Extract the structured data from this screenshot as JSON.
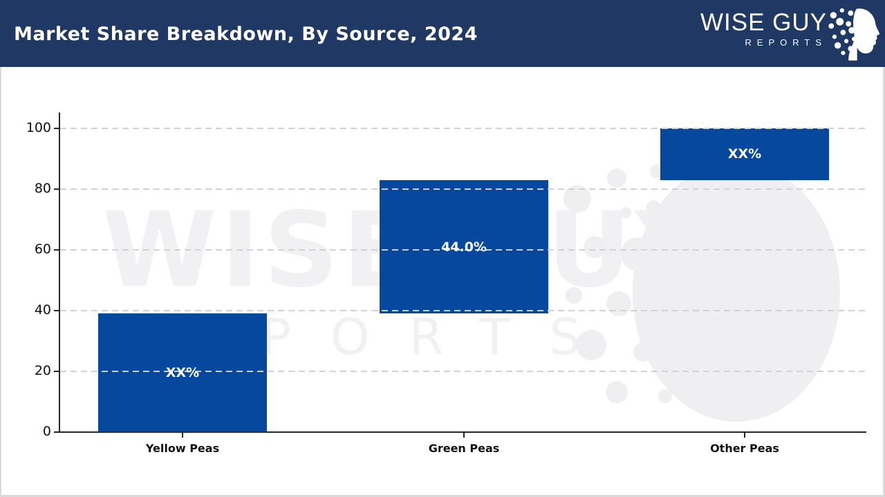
{
  "header": {
    "title": "Market Share Breakdown, By Source, 2024",
    "logo": {
      "line1": "WISE GUY",
      "line2": "REPORTS"
    }
  },
  "watermark": {
    "line1": "WISE GUY",
    "line2": "REPORTS"
  },
  "chart_data": {
    "type": "bar",
    "subtype": "waterfall",
    "title": "Market Share Breakdown, By Source, 2024",
    "categories": [
      "Yellow Peas",
      "Green Peas",
      "Other Peas"
    ],
    "series": [
      {
        "name": "Market Share",
        "segments": [
          {
            "category": "Yellow Peas",
            "start": 0,
            "end": 39,
            "label": "XX%"
          },
          {
            "category": "Green Peas",
            "start": 39,
            "end": 83,
            "label": "44.0%"
          },
          {
            "category": "Other Peas",
            "start": 83,
            "end": 100,
            "label": "XX%"
          }
        ]
      }
    ],
    "xlabel": "",
    "ylabel": "",
    "ylim": [
      0,
      105
    ],
    "yticks": [
      0,
      20,
      40,
      60,
      80,
      100
    ],
    "grid": "horizontal-dashed",
    "legend": "none",
    "bar_color": "#05489D",
    "bar_label_color": "#FFFFFF"
  },
  "colors": {
    "header_bg": "#1F3864",
    "bar": "#05489D",
    "grid": "#D2D2D2",
    "axis": "#262626",
    "watermark": "#F1F1F3",
    "page_border": "#D9D9D9"
  }
}
